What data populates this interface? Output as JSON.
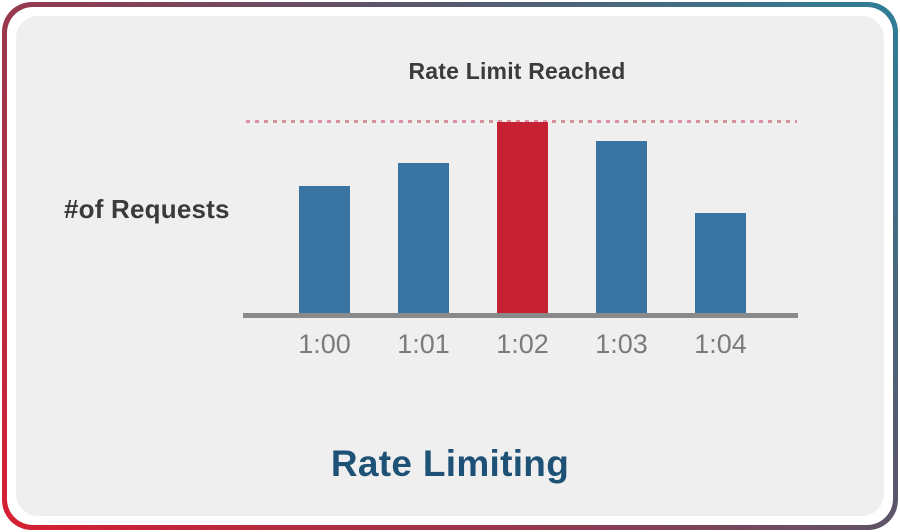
{
  "frame": {
    "gradient_colors": [
      "#d81f33",
      "#97394f",
      "#5e5468",
      "#2f7e97"
    ],
    "panel_bg": "#f0eff0"
  },
  "chart_data": {
    "type": "bar",
    "title": "Rate Limit Reached",
    "ylabel": "#of Requests",
    "xlabel": "",
    "categories": [
      "1:00",
      "1:01",
      "1:02",
      "1:03",
      "1:04"
    ],
    "values": [
      67,
      79,
      100,
      90,
      53
    ],
    "value_unit": "percent of rate limit",
    "ylim": [
      0,
      100
    ],
    "grid": false,
    "legend": null,
    "limit_line": {
      "value": 100,
      "style": "dotted",
      "color": "#d9939f"
    },
    "highlight_index": 2,
    "bar_colors": {
      "normal": "#3a74a2",
      "limit_reached": "#c62133"
    },
    "axis_color": "#8a8a8a",
    "tick_color": "#7b7b7b"
  },
  "caption": {
    "text": "Rate Limiting",
    "color": "#1d5276"
  }
}
